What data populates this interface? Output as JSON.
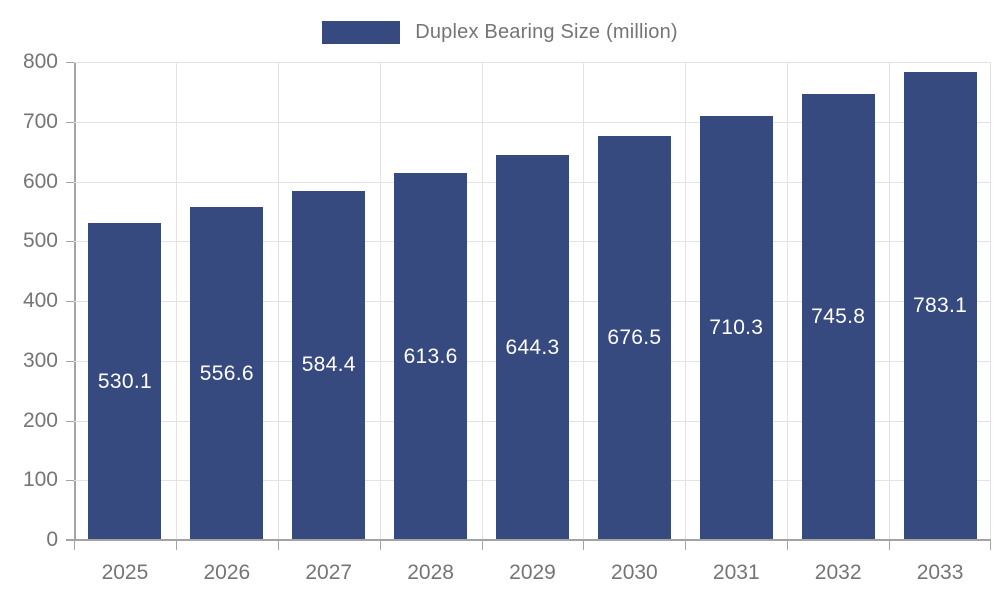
{
  "legend": {
    "label": "Duplex Bearing Size (million)"
  },
  "chart_data": {
    "type": "bar",
    "title": "Duplex Bearing Size (million)",
    "categories": [
      "2025",
      "2026",
      "2027",
      "2028",
      "2029",
      "2030",
      "2031",
      "2032",
      "2033"
    ],
    "series": [
      {
        "name": "Duplex Bearing Size (million)",
        "values": [
          530.1,
          556.6,
          584.4,
          613.6,
          644.3,
          676.5,
          710.3,
          745.8,
          783.1
        ]
      }
    ],
    "value_labels": [
      "530.1",
      "556.6",
      "584.4",
      "613.6",
      "644.3",
      "676.5",
      "710.3",
      "745.8",
      "783.1"
    ],
    "xlabel": "",
    "ylabel": "",
    "ylim": [
      0,
      800
    ],
    "yticks": [
      0,
      100,
      200,
      300,
      400,
      500,
      600,
      700,
      800
    ],
    "grid": true,
    "legend_position": "top"
  },
  "colors": {
    "bar": "#374a7f",
    "bar_value_label": "#ffffff",
    "tick_text": "#757575",
    "legend_text": "#757575",
    "axis": "#a3a3a3",
    "gridline": "#e3e3e3",
    "background": "#ffffff"
  }
}
